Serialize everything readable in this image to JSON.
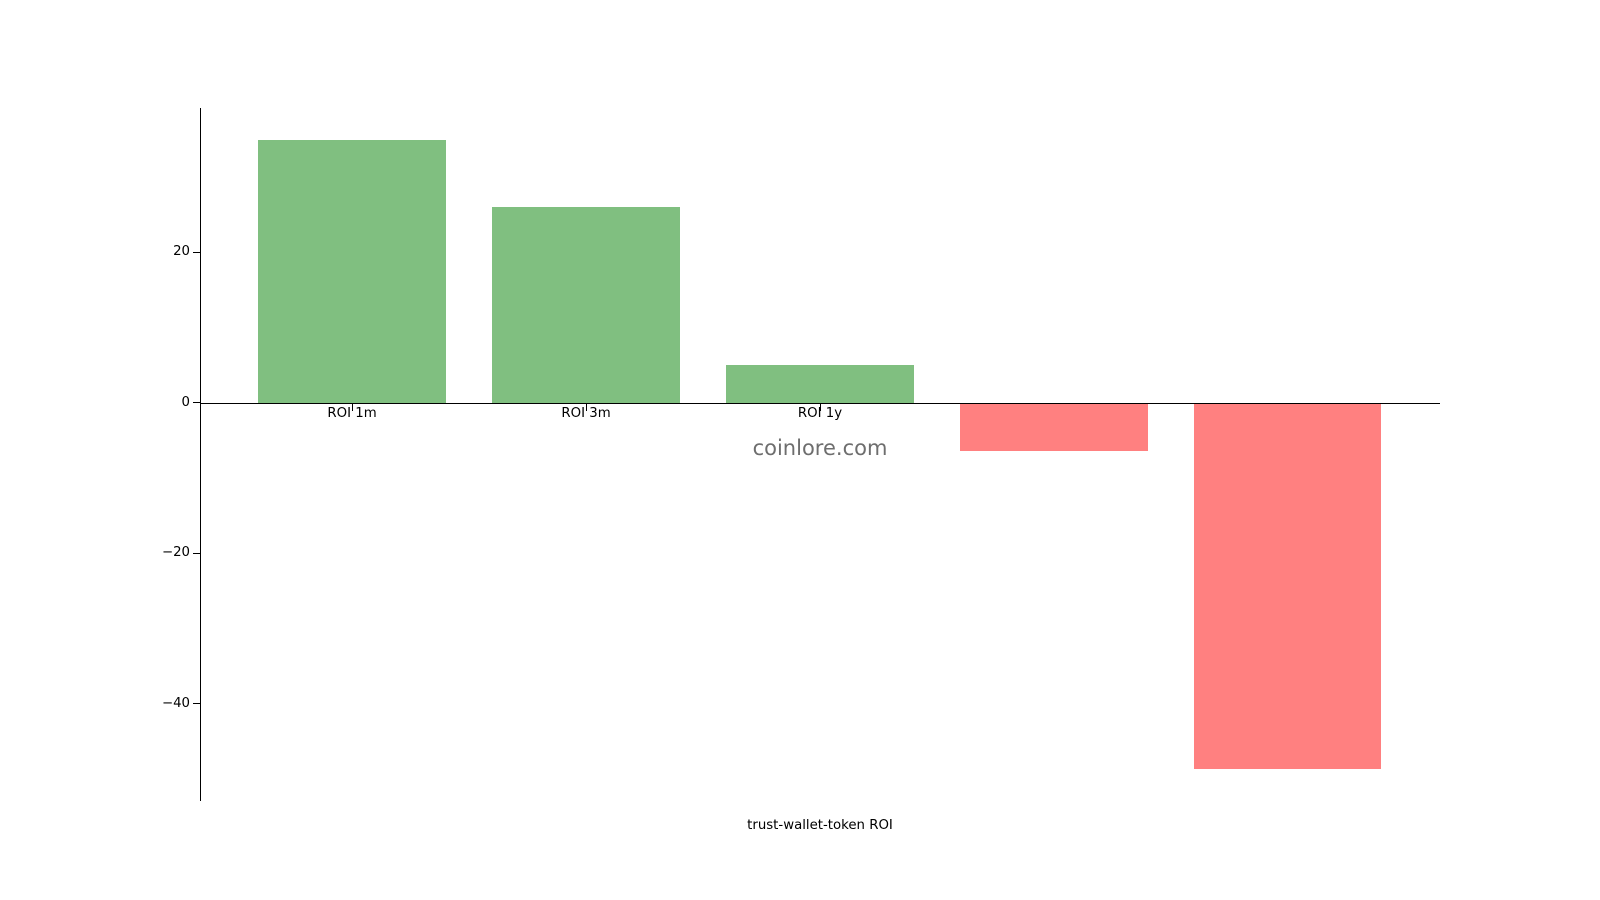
{
  "chart_data": {
    "type": "bar",
    "title": "",
    "xlabel": "trust-wallet-token ROI",
    "ylabel": "",
    "categories": [
      "ROI 1m",
      "ROI 3m",
      "ROI 1y",
      "",
      ""
    ],
    "values": [
      35,
      26,
      5,
      -6.2,
      -48.5
    ],
    "positive_color": "#80bf80",
    "negative_color": "#ff8080",
    "bar_colors": [
      "#80bf80",
      "#80bf80",
      "#80bf80",
      "#ff8080",
      "#ff8080"
    ],
    "ytick_values": [
      20,
      0,
      -20,
      -40
    ],
    "ytick_labels": [
      "20",
      "0",
      "−20",
      "−40"
    ],
    "ylim": [
      -52.9,
      39.2
    ],
    "xlim": [
      -0.65,
      4.65
    ],
    "bar_width": 0.8,
    "grid": false,
    "legend": "none",
    "axis_color": "#000000",
    "background_color": "#ffffff",
    "watermark": "coinlore.com",
    "watermark_color": "#6e6e6e"
  }
}
